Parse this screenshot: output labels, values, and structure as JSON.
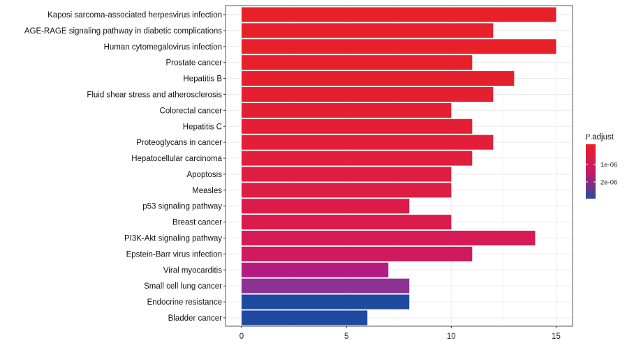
{
  "chart_data": {
    "type": "bar",
    "orientation": "horizontal",
    "categories": [
      "Kaposi sarcoma-associated herpesvirus infection",
      "AGE-RAGE signaling pathway in diabetic complications",
      "Human cytomegalovirus infection",
      "Prostate cancer",
      "Hepatitis B",
      "Fluid shear stress and atherosclerosis",
      "Colorectal cancer",
      "Hepatitis C",
      "Proteoglycans in cancer",
      "Hepatocellular carcinoma",
      "Apoptosis",
      "Measles",
      "p53 signaling pathway",
      "Breast cancer",
      "PI3K-Akt signaling pathway",
      "Epstein-Barr virus infection",
      "Viral myocarditis",
      "Small cell lung cancer",
      "Endocrine resistance",
      "Bladder cancer"
    ],
    "values": [
      15,
      12,
      15,
      11,
      13,
      12,
      10,
      11,
      12,
      11,
      10,
      10,
      8,
      10,
      14,
      11,
      7,
      8,
      8,
      6
    ],
    "colors": [
      "#e8202a",
      "#e8202a",
      "#e8202a",
      "#e8202a",
      "#e61f2e",
      "#e61f30",
      "#e51f32",
      "#e41e34",
      "#e21e38",
      "#e11e3c",
      "#df1d40",
      "#de1d42",
      "#dc1c48",
      "#da1b4e",
      "#d61a56",
      "#d01a5e",
      "#b41c82",
      "#8c3292",
      "#1f4aa0",
      "#1e4aa0"
    ],
    "xlim": [
      -0.8,
      15.8
    ],
    "xticks": [
      0,
      5,
      10,
      15
    ],
    "xtick_labels": [
      "0",
      "5",
      "10",
      "15"
    ],
    "xlabel": "",
    "ylabel": "",
    "grid": true,
    "legend": {
      "title_italic": "P",
      "title_rest": ".adjust",
      "labels": [
        "1e-06",
        "2e-06"
      ],
      "gradient": [
        "#e8202a",
        "#c81868",
        "#2a4aa0"
      ],
      "placement": "right"
    }
  }
}
